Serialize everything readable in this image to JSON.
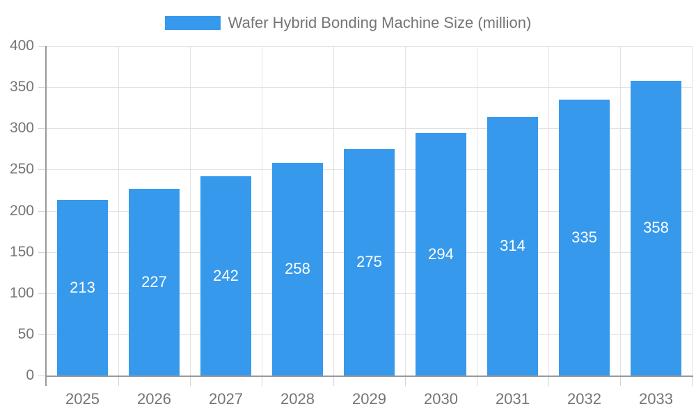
{
  "legend": {
    "series_label": "Wafer Hybrid Bonding Machine Size (million)"
  },
  "chart_data": {
    "type": "bar",
    "title": "Wafer Hybrid Bonding Machine Size (million)",
    "categories": [
      "2025",
      "2026",
      "2027",
      "2028",
      "2029",
      "2030",
      "2031",
      "2032",
      "2033"
    ],
    "values": [
      213,
      227,
      242,
      258,
      275,
      294,
      314,
      335,
      358
    ],
    "xlabel": "",
    "ylabel": "",
    "ylim": [
      0,
      400
    ],
    "yticks": [
      0,
      50,
      100,
      150,
      200,
      250,
      300,
      350,
      400
    ],
    "grid": true,
    "legend_position": "top",
    "colors": {
      "bar": "#3699EC",
      "bar_label": "#FFFFFF",
      "grid": "#E2E2E2",
      "tick": "#D4D4D4",
      "axis": "#999999",
      "text": "#757575"
    }
  }
}
